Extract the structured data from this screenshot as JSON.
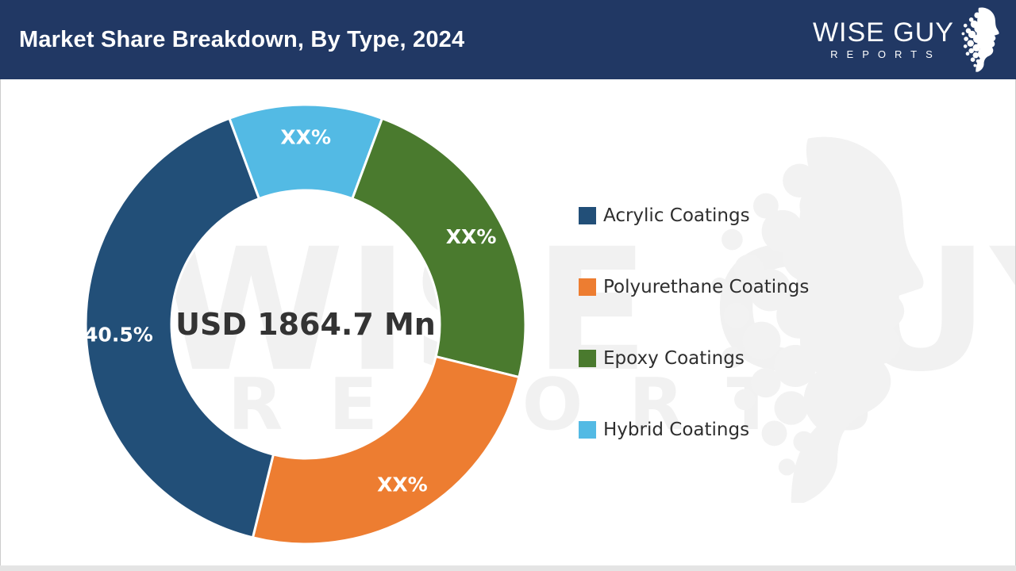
{
  "header": {
    "title": "Market Share Breakdown, By Type, 2024",
    "brand": {
      "line1": "WISE GUY",
      "line2": "REPORTS"
    }
  },
  "watermark": {
    "line1": "WISE GUY",
    "line2": "REPORTS"
  },
  "chart_data": {
    "type": "donut",
    "title": "Market Share Breakdown, By Type, 2024",
    "center_label": "USD 1864.7 Mn",
    "unit": "percent share of market",
    "legend_position": "right",
    "direction": "clockwise",
    "rotation_deg": -20.3,
    "inner_radius_ratio": 0.61,
    "segments": [
      {
        "label": "Acrylic Coatings",
        "value": 40.5,
        "value_label": "40.5%",
        "color": "#224f78"
      },
      {
        "label": "Polyurethane Coatings",
        "value": 25.0,
        "value_label": "XX%",
        "color": "#ed7d31"
      },
      {
        "label": "Epoxy Coatings",
        "value": 23.2,
        "value_label": "XX%",
        "color": "#4a7a2e"
      },
      {
        "label": "Hybrid Coatings",
        "value": 11.3,
        "value_label": "XX%",
        "color": "#53bae4"
      }
    ]
  },
  "colors": {
    "header_bg": "#213864",
    "center_text": "#333333",
    "watermark": "#f1f1f1",
    "bottom_bar": "#e4e4e4"
  }
}
